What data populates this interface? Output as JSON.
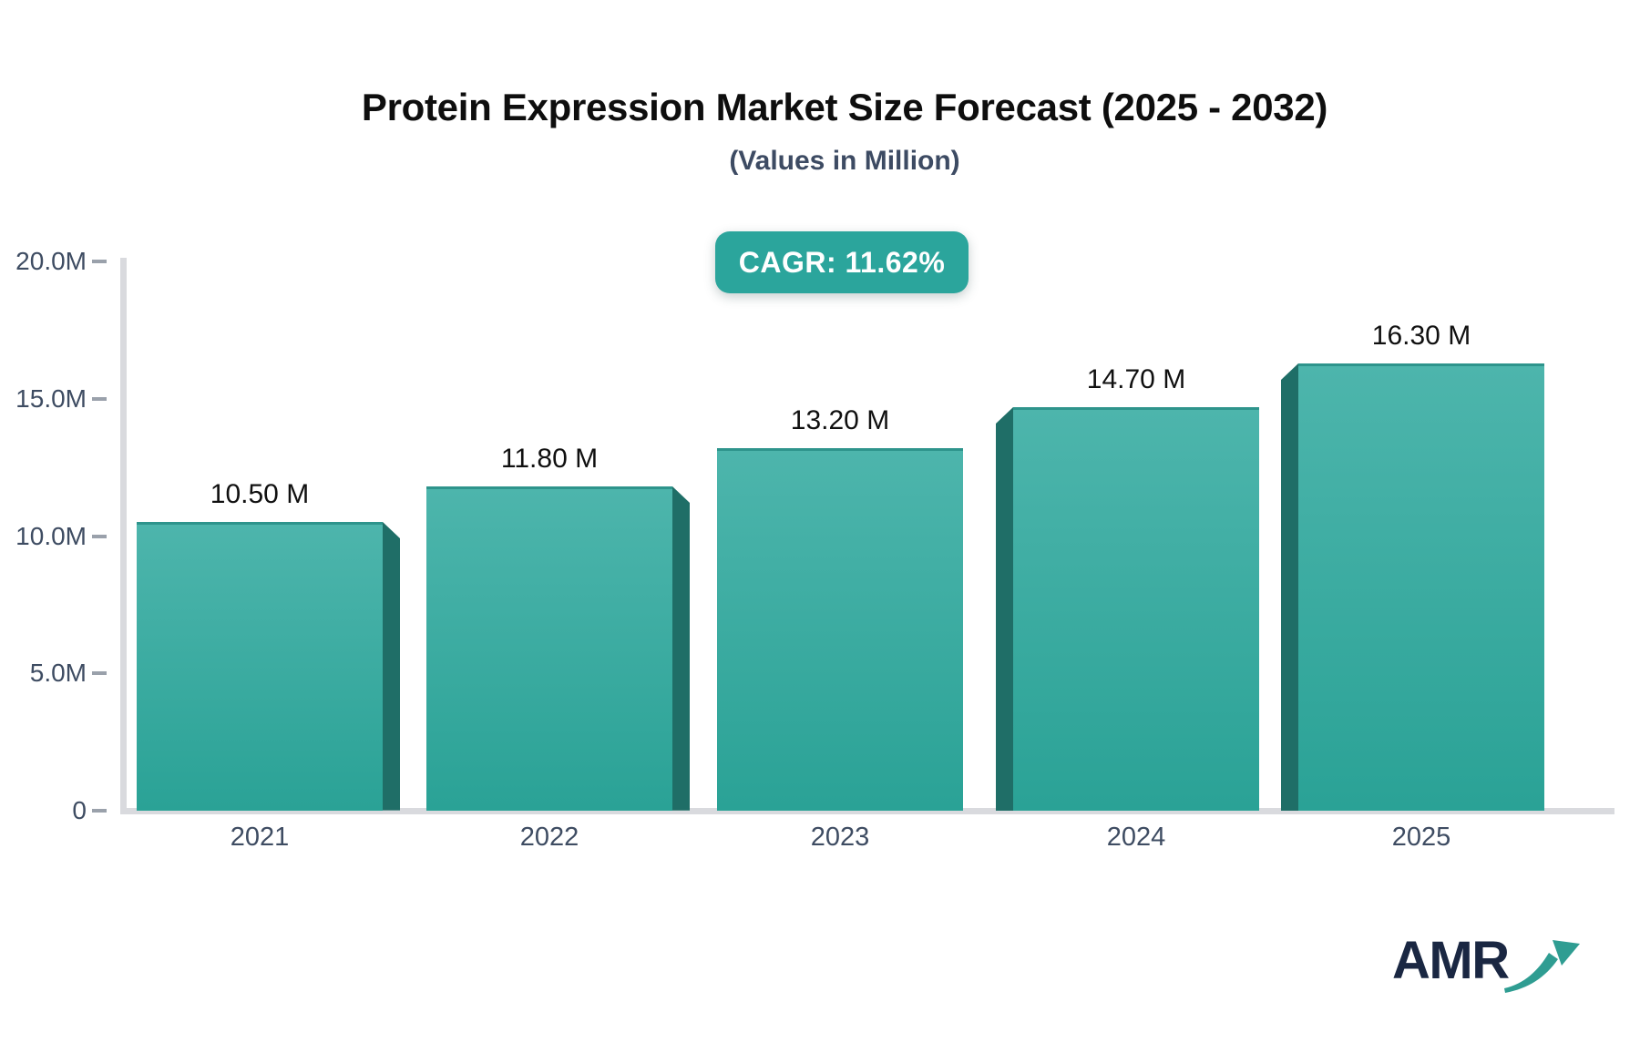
{
  "header": {
    "title": "Protein Expression Market Size Forecast (2025 - 2032)",
    "subtitle": "(Values in Million)"
  },
  "badge": {
    "label": "CAGR: 11.62%"
  },
  "logo": {
    "text": "AMR",
    "arrow": "growth-arrow-icon"
  },
  "colors": {
    "bar_top": "#4db5ac",
    "bar_bottom": "#2aa296",
    "bar_side": "#1f6e67",
    "bar_top_edge": "#2e948c",
    "badge_bg": "#2ba59c",
    "axis_line": "#d9dade",
    "tick_dash": "#9aa1ab",
    "axis_text": "#3e4c62",
    "logo_navy": "#1a2742",
    "logo_teal": "#2f9d92"
  },
  "chart_data": {
    "type": "bar",
    "categories": [
      "2021",
      "2022",
      "2023",
      "2024",
      "2025"
    ],
    "values": [
      10.5,
      11.8,
      13.2,
      14.7,
      16.3
    ],
    "value_labels": [
      "10.50 M",
      "11.80 M",
      "13.20 M",
      "14.70 M",
      "16.30 M"
    ],
    "title": "Protein Expression Market Size Forecast (2025 - 2032)",
    "subtitle": "(Values in Million)",
    "annotation": "CAGR: 11.62%",
    "xlabel": "",
    "ylabel": "",
    "ylim": [
      0,
      20
    ],
    "yticks": [
      0,
      5,
      10,
      15,
      20
    ],
    "ytick_labels": [
      "0",
      "5.0M",
      "10.0M",
      "15.0M",
      "20.0M"
    ],
    "grid": false,
    "legend": false,
    "style": "3d-perspective-bars, teal gradient, value labels above bars"
  }
}
